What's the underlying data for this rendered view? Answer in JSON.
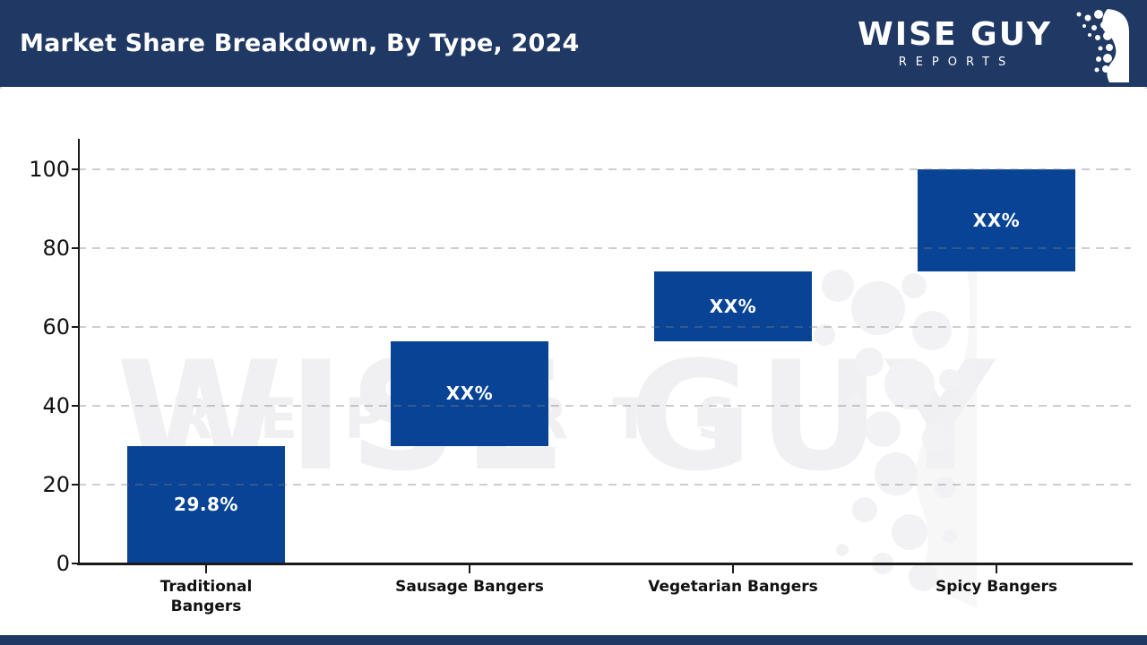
{
  "header": {
    "title": "Market Share Breakdown, By Type, 2024",
    "logo": {
      "line1": "WISE GUY",
      "line2": "REPORTS"
    }
  },
  "watermark": {
    "line1": "WISE GUY",
    "line2": "REPORTS"
  },
  "colors": {
    "header_bg": "#1f3864",
    "bar": "#084395",
    "bar_label_text": "#ffffff",
    "axis": "#1a1a1a",
    "gridline": "#c9c9c9",
    "watermark": "#f0f0f2",
    "page_border": "#d9d9d9"
  },
  "chart_data": {
    "type": "bar",
    "subtype": "waterfall",
    "title": "Market Share Breakdown, By Type, 2024",
    "categories": [
      "Traditional Bangers",
      "Sausage Bangers",
      "Vegetarian Bangers",
      "Spicy Bangers"
    ],
    "category_label_lines": [
      [
        "Traditional",
        "Bangers"
      ],
      [
        "Sausage Bangers"
      ],
      [
        "Vegetarian Bangers"
      ],
      [
        "Spicy Bangers"
      ]
    ],
    "segments": [
      {
        "category": "Traditional Bangers",
        "start": 0,
        "end": 29.8,
        "label": "29.8%"
      },
      {
        "category": "Sausage Bangers",
        "start": 29.8,
        "end": 56.4,
        "label": "XX%"
      },
      {
        "category": "Vegetarian Bangers",
        "start": 56.4,
        "end": 74.1,
        "label": "XX%"
      },
      {
        "category": "Spicy Bangers",
        "start": 74.1,
        "end": 100,
        "label": "XX%"
      }
    ],
    "y_ticks": [
      0,
      20,
      40,
      60,
      80,
      100
    ],
    "ylim": [
      0,
      107
    ],
    "xlabel": "",
    "ylabel": "",
    "grid": "horizontal dashed, drawn over bars",
    "legend": "none"
  }
}
